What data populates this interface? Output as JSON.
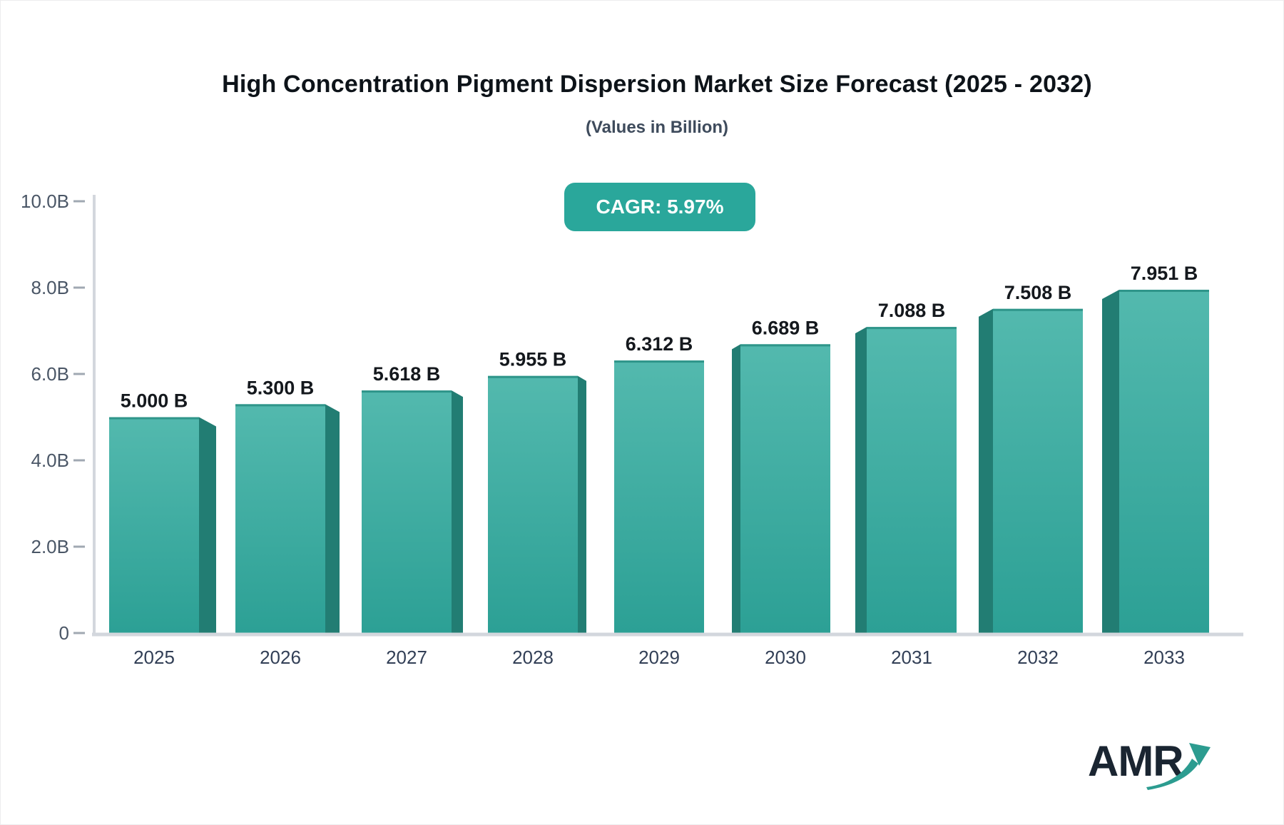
{
  "header": {
    "title": "High Concentration Pigment Dispersion Market Size Forecast (2025 - 2032)",
    "subtitle": "(Values in Billion)"
  },
  "badge": {
    "label": "CAGR: 5.97%",
    "bg_color": "#2aa79b",
    "text_color": "#ffffff"
  },
  "chart_data": {
    "type": "bar",
    "title": "High Concentration Pigment Dispersion Market Size Forecast (2025 - 2032)",
    "subtitle": "(Values in Billion)",
    "categories": [
      "2025",
      "2026",
      "2027",
      "2028",
      "2029",
      "2030",
      "2031",
      "2032",
      "2033"
    ],
    "values": [
      5.0,
      5.3,
      5.618,
      5.955,
      6.312,
      6.689,
      7.088,
      7.508,
      7.951
    ],
    "value_labels": [
      "5.000 B",
      "5.300 B",
      "5.618 B",
      "5.955 B",
      "6.312 B",
      "6.689 B",
      "7.088 B",
      "7.508 B",
      "7.951 B"
    ],
    "xlabel": "",
    "ylabel": "Values in Billion",
    "ylim": [
      0,
      10
    ],
    "ytick_values": [
      0,
      2,
      4,
      6,
      8,
      10
    ],
    "ytick_labels": [
      "0",
      "2.0B",
      "4.0B",
      "6.0B",
      "8.0B",
      "10.0B"
    ],
    "grid": false,
    "legend": "none",
    "bar_style": {
      "effect": "3d-center-perspective",
      "face_color_top": "#53b9ae",
      "face_color_bottom": "#2ca095",
      "side_color": "#227d73",
      "top_edge_color": "#2f958a",
      "axis_line_color": "#d3d7dd",
      "tick_dash_color": "#a0a8b2"
    }
  },
  "logo": {
    "text": "AMR",
    "text_color": "#1a2531",
    "arrow_icon": "growth-arrow",
    "arrow_color": "#2c9c90"
  }
}
